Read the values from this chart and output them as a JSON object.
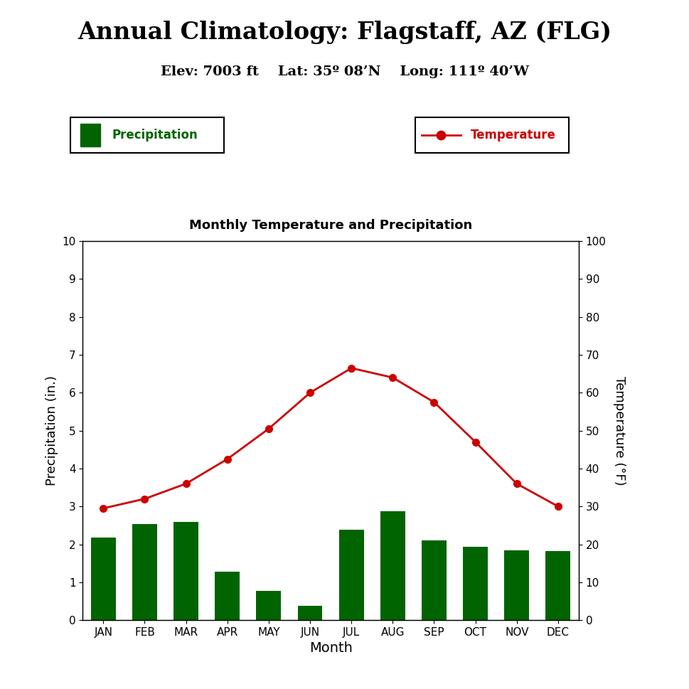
{
  "title": "Annual Climatology: Flagstaff, AZ (FLG)",
  "subtitle": "Elev: 7003 ft    Lat: 35º 08’N    Long: 111º 40’W",
  "chart_title": "Monthly Temperature and Precipitation",
  "months": [
    "JAN",
    "FEB",
    "MAR",
    "APR",
    "MAY",
    "JUN",
    "JUL",
    "AUG",
    "SEP",
    "OCT",
    "NOV",
    "DEC"
  ],
  "precipitation": [
    2.18,
    2.54,
    2.59,
    1.28,
    0.78,
    0.38,
    2.38,
    2.88,
    2.1,
    1.93,
    1.85,
    1.82
  ],
  "temperature": [
    29.5,
    32.0,
    36.0,
    42.5,
    50.5,
    60.0,
    66.5,
    64.0,
    57.5,
    47.0,
    36.0,
    30.0
  ],
  "bar_color": "#006400",
  "line_color": "#cc0000",
  "precip_ylim": [
    0,
    10
  ],
  "temp_ylim": [
    0,
    100
  ],
  "precip_yticks": [
    0,
    1,
    2,
    3,
    4,
    5,
    6,
    7,
    8,
    9,
    10
  ],
  "temp_yticks": [
    0,
    10,
    20,
    30,
    40,
    50,
    60,
    70,
    80,
    90,
    100
  ],
  "xlabel": "Month",
  "ylabel_left": "Precipitation (in.)",
  "ylabel_right": "Temperature (°F)",
  "legend_precip": "Precipitation",
  "legend_temp": "Temperature",
  "background_color": "#ffffff"
}
